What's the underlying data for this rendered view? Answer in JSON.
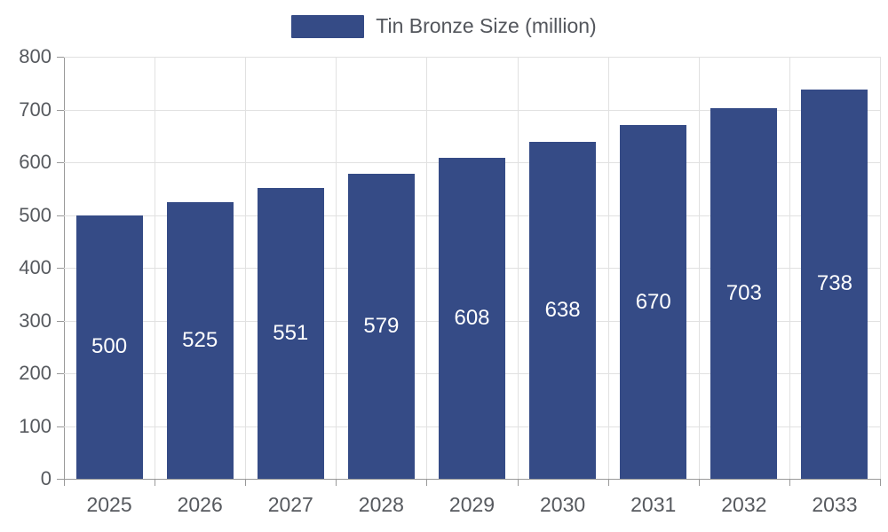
{
  "legend": {
    "label": "Tin Bronze Size (million)"
  },
  "colors": {
    "bar": "#354b86",
    "grid": "#e1e1e1",
    "axis": "#999999",
    "tick_text": "#56595e",
    "value_label": "#ffffff",
    "background": "#ffffff"
  },
  "chart_data": {
    "type": "bar",
    "title": "Tin Bronze Size (million)",
    "categories": [
      "2025",
      "2026",
      "2027",
      "2028",
      "2029",
      "2030",
      "2031",
      "2032",
      "2033"
    ],
    "values": [
      500,
      525,
      551,
      579,
      608,
      638,
      670,
      703,
      738
    ],
    "xlabel": "",
    "ylabel": "",
    "ylim": [
      0,
      800
    ],
    "yticks": [
      0,
      100,
      200,
      300,
      400,
      500,
      600,
      700,
      800
    ],
    "grid": true,
    "legend_position": "top",
    "value_labels": "centered-white-inside-bars"
  }
}
